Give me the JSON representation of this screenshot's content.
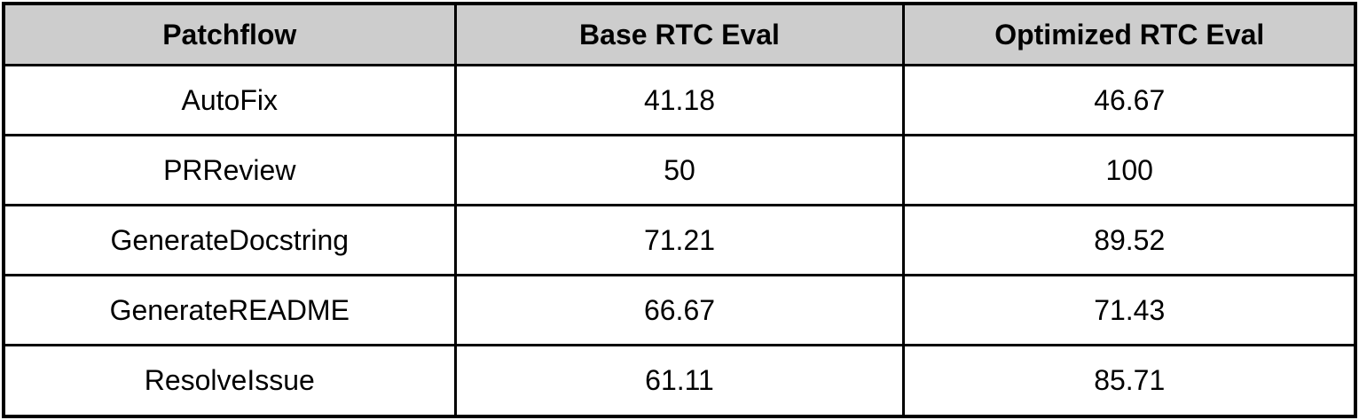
{
  "table": {
    "headers": [
      {
        "key": "patchflow",
        "label": "Patchflow"
      },
      {
        "key": "base",
        "label": "Base RTC Eval"
      },
      {
        "key": "optimized",
        "label": "Optimized RTC Eval"
      }
    ],
    "rows": [
      {
        "patchflow": "AutoFix",
        "base": "41.18",
        "optimized": "46.67"
      },
      {
        "patchflow": "PRReview",
        "base": "50",
        "optimized": "100"
      },
      {
        "patchflow": "GenerateDocstring",
        "base": "71.21",
        "optimized": "89.52"
      },
      {
        "patchflow": "GenerateREADME",
        "base": "66.67",
        "optimized": "71.43"
      },
      {
        "patchflow": "ResolveIssue",
        "base": "61.11",
        "optimized": "85.71"
      }
    ]
  },
  "chart_data": {
    "type": "table",
    "title": "",
    "categories": [
      "AutoFix",
      "PRReview",
      "GenerateDocstring",
      "GenerateREADME",
      "ResolveIssue"
    ],
    "series": [
      {
        "name": "Base RTC Eval",
        "values": [
          41.18,
          50,
          71.21,
          66.67,
          61.11
        ]
      },
      {
        "name": "Optimized RTC Eval",
        "values": [
          46.67,
          100,
          89.52,
          71.43,
          85.71
        ]
      }
    ],
    "layout": {
      "header_background": "#cdcdcd",
      "border_color": "#000000",
      "text_color": "#000000",
      "grid": true,
      "header_bold": true,
      "text_align": "center"
    }
  }
}
